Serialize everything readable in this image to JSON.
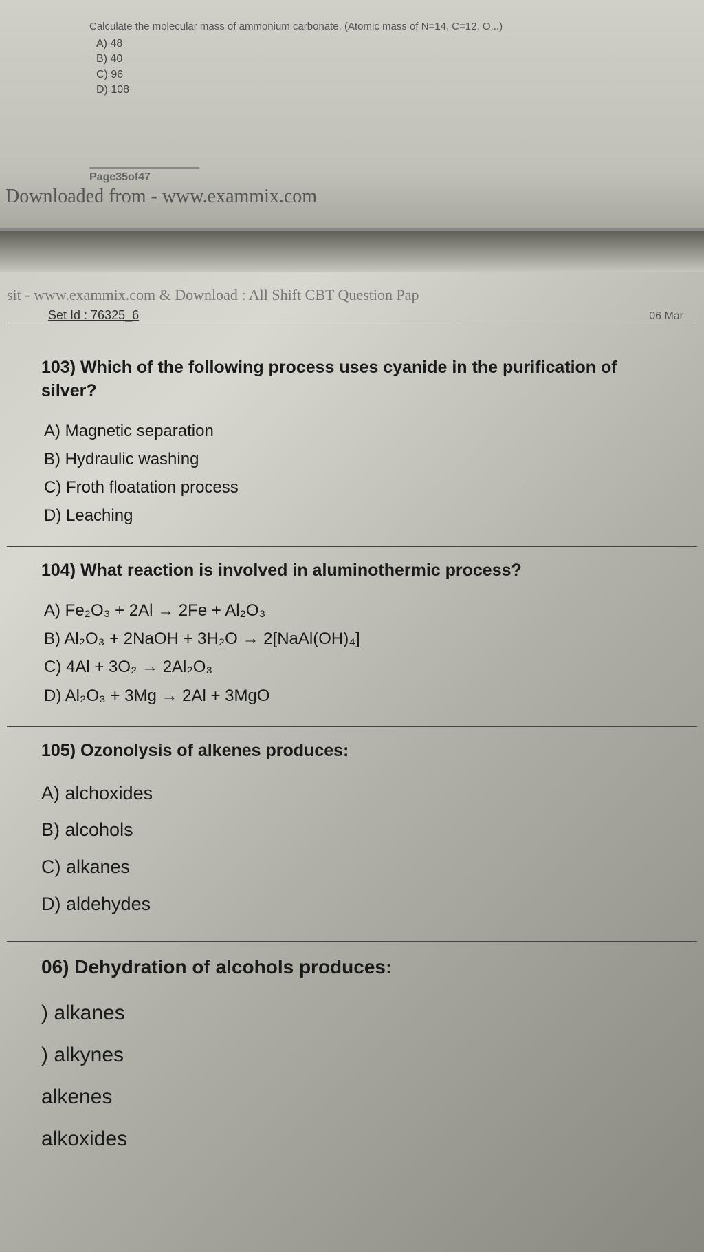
{
  "top": {
    "faded_question": "Calculate the molecular mass of ammonium carbonate. (Atomic mass of N=14, C=12, O...)",
    "options": [
      "A) 48",
      "B) 40",
      "C) 96",
      "D) 108"
    ],
    "page_label": "Page35of47"
  },
  "download_from": "Downloaded from - www.exammix.com",
  "header_text": "sit - www.exammix.com & Download : All Shift CBT Question Pap",
  "set_id": "Set Id : 76325_6",
  "date": "06 Mar",
  "q103": {
    "text": "103) Which of the following process uses cyanide in the purification of silver?",
    "a": "A) Magnetic separation",
    "b": "B) Hydraulic washing",
    "c": "C) Froth floatation process",
    "d": "D) Leaching"
  },
  "q104": {
    "text": "104) What reaction is involved in aluminothermic process?",
    "a": "A) Fe₂O₃ + 2Al → 2Fe + Al₂O₃",
    "b": "B) Al₂O₃ + 2NaOH + 3H₂O → 2[NaAl(OH)₄]",
    "c": "C) 4Al + 3O₂ → 2Al₂O₃",
    "d": "D) Al₂O₃ + 3Mg → 2Al + 3MgO"
  },
  "q105": {
    "text": "105) Ozonolysis of alkenes produces:",
    "a": "A) alchoxides",
    "b": "B) alcohols",
    "c": "C) alkanes",
    "d": "D) aldehydes"
  },
  "q106": {
    "text": "06) Dehydration of alcohols produces:",
    "a": ") alkanes",
    "b": ") alkynes",
    "c": "alkenes",
    "d": "alkoxides"
  }
}
